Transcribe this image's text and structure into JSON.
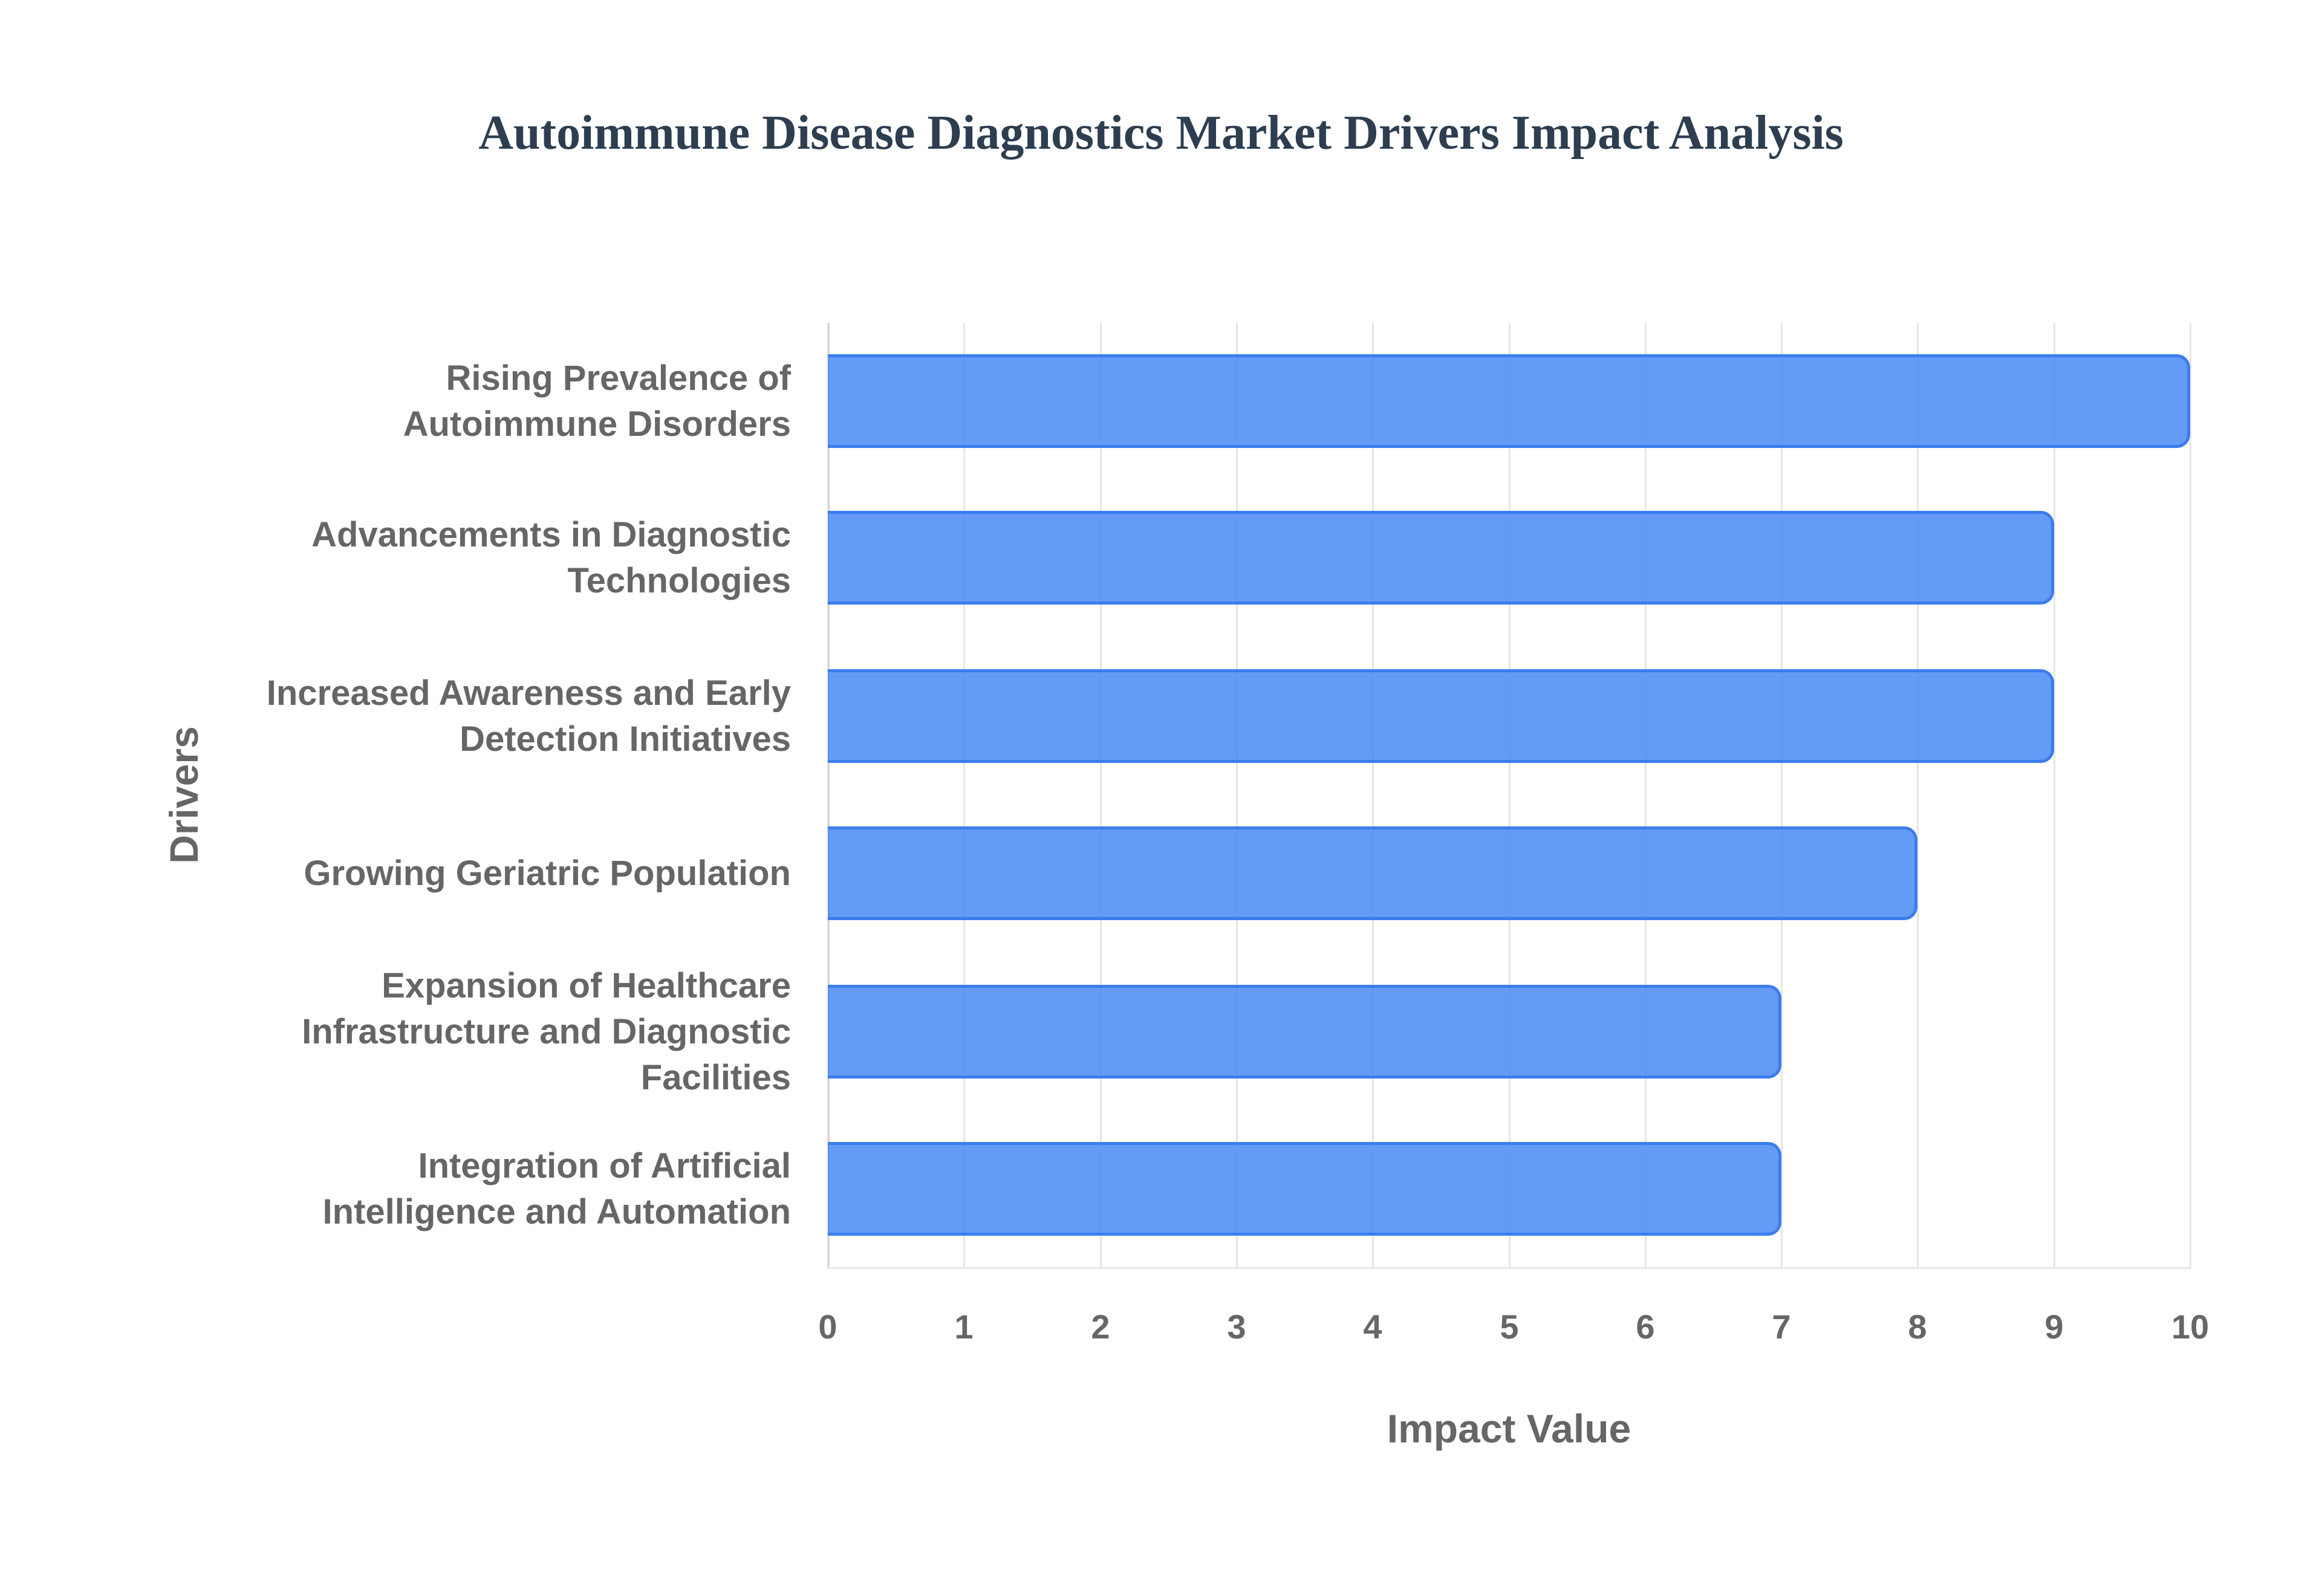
{
  "title": "Autoimmune Disease Diagnostics Market Drivers Impact Analysis",
  "colors": {
    "bar_fill": "#4285F4",
    "bar_border": "#3b7ded",
    "title": "#2c3e50",
    "axis_text": "#666666",
    "grid": "#e6e6e6"
  },
  "axes": {
    "x_title": "Impact Value",
    "y_title": "Drivers",
    "x_ticks": [
      "0",
      "1",
      "2",
      "3",
      "4",
      "5",
      "6",
      "7",
      "8",
      "9",
      "10"
    ]
  },
  "bars": [
    {
      "label_lines": [
        "Rising Prevalence of",
        "Autoimmune Disorders"
      ],
      "value": 10
    },
    {
      "label_lines": [
        "Advancements in Diagnostic",
        "Technologies"
      ],
      "value": 9
    },
    {
      "label_lines": [
        "Increased Awareness and Early",
        "Detection Initiatives"
      ],
      "value": 9
    },
    {
      "label_lines": [
        "Growing Geriatric Population"
      ],
      "value": 8
    },
    {
      "label_lines": [
        "Expansion of Healthcare",
        "Infrastructure and Diagnostic",
        "Facilities"
      ],
      "value": 7
    },
    {
      "label_lines": [
        "Integration of Artificial",
        "Intelligence and Automation"
      ],
      "value": 7
    }
  ],
  "chart_data": {
    "type": "bar",
    "orientation": "horizontal",
    "title": "Autoimmune Disease Diagnostics Market Drivers Impact Analysis",
    "xlabel": "Impact Value",
    "ylabel": "Drivers",
    "categories": [
      "Rising Prevalence of Autoimmune Disorders",
      "Advancements in Diagnostic Technologies",
      "Increased Awareness and Early Detection Initiatives",
      "Growing Geriatric Population",
      "Expansion of Healthcare Infrastructure and Diagnostic Facilities",
      "Integration of Artificial Intelligence and Automation"
    ],
    "values": [
      10,
      9,
      9,
      8,
      7,
      7
    ],
    "xlim": [
      0,
      10
    ],
    "x_ticks": [
      0,
      1,
      2,
      3,
      4,
      5,
      6,
      7,
      8,
      9,
      10
    ],
    "grid": true,
    "legend": null
  }
}
